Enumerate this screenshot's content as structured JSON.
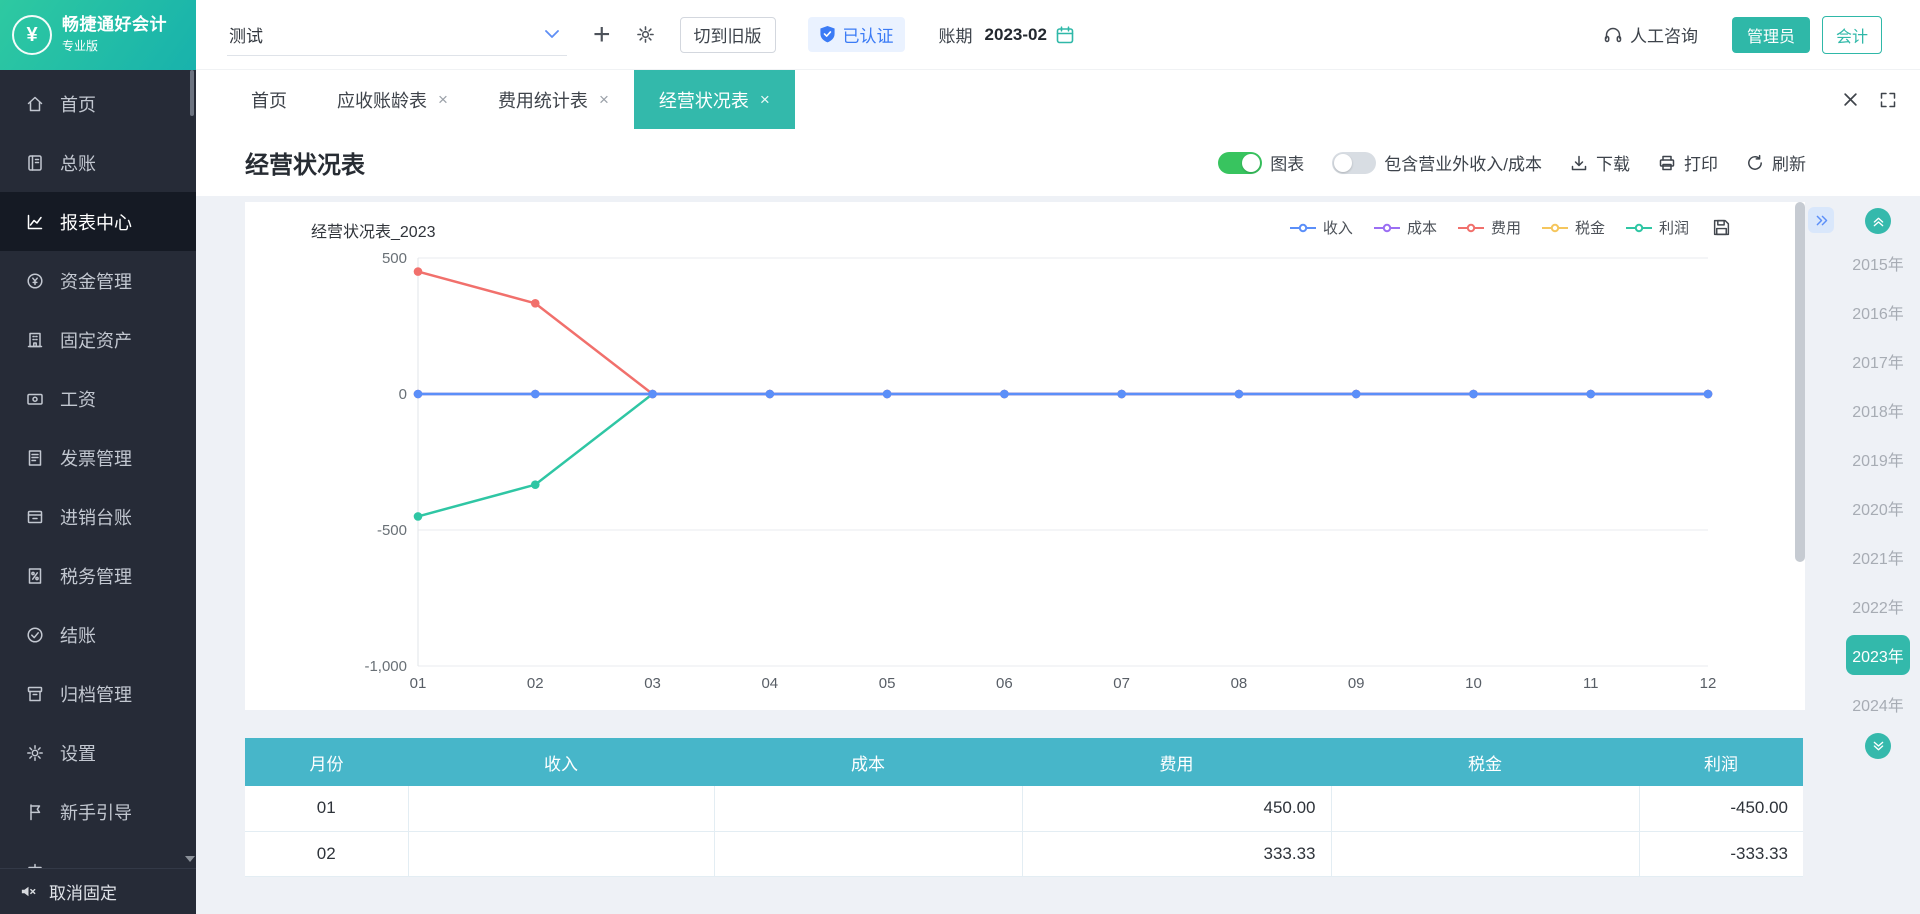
{
  "app": {
    "account_set": "测试",
    "switch_old": "切到旧版",
    "certified": "已认证",
    "period_label": "账期",
    "period_value": "2023-02",
    "support": "人工咨询",
    "role_admin": "管理员",
    "role_accountant": "会计",
    "logo_title": "畅捷通好会计",
    "logo_subtitle": "专业版"
  },
  "ui": {
    "close_glyph": "×",
    "plus_glyph": "+",
    "logo_glyph": "¥"
  },
  "sidebar": {
    "items": [
      {
        "id": "home",
        "label": "首页",
        "icon": "home-icon",
        "active": false
      },
      {
        "id": "ledger",
        "label": "总账",
        "icon": "ledger-icon",
        "active": false
      },
      {
        "id": "reports",
        "label": "报表中心",
        "icon": "report-icon",
        "active": true
      },
      {
        "id": "funds",
        "label": "资金管理",
        "icon": "funds-icon",
        "active": false
      },
      {
        "id": "assets",
        "label": "固定资产",
        "icon": "assets-icon",
        "active": false
      },
      {
        "id": "salary",
        "label": "工资",
        "icon": "salary-icon",
        "active": false
      },
      {
        "id": "invoice",
        "label": "发票管理",
        "icon": "invoice-icon",
        "active": false
      },
      {
        "id": "inventory",
        "label": "进销台账",
        "icon": "inventory-icon",
        "active": false
      },
      {
        "id": "tax",
        "label": "税务管理",
        "icon": "tax-icon",
        "active": false
      },
      {
        "id": "closing",
        "label": "结账",
        "icon": "closing-icon",
        "active": false
      },
      {
        "id": "archive",
        "label": "归档管理",
        "icon": "archive-icon",
        "active": false
      },
      {
        "id": "settings",
        "label": "设置",
        "icon": "gear-icon",
        "active": false
      },
      {
        "id": "guide",
        "label": "新手引导",
        "icon": "guide-icon",
        "active": false
      },
      {
        "id": "partial",
        "label": "",
        "icon": "scale-icon",
        "active": false
      }
    ],
    "unpin": "取消固定"
  },
  "tabs": [
    {
      "label": "首页",
      "closable": false,
      "active": false
    },
    {
      "label": "应收账龄表",
      "closable": true,
      "active": false
    },
    {
      "label": "费用统计表",
      "closable": true,
      "active": false
    },
    {
      "label": "经营状况表",
      "closable": true,
      "active": true
    }
  ],
  "page": {
    "title": "经营状况表",
    "toggle_chart_label": "图表",
    "toggle_include_label": "包含营业外收入/成本",
    "download": "下载",
    "print": "打印",
    "refresh": "刷新"
  },
  "chart_data": {
    "type": "line",
    "title": "经营状况表_2023",
    "categories": [
      "01",
      "02",
      "03",
      "04",
      "05",
      "06",
      "07",
      "08",
      "09",
      "10",
      "11",
      "12"
    ],
    "series": [
      {
        "name": "收入",
        "color": "#5b8ff9",
        "values": [
          0,
          0,
          0,
          0,
          0,
          0,
          0,
          0,
          0,
          0,
          0,
          0
        ]
      },
      {
        "name": "成本",
        "color": "#9b6ef3",
        "values": [
          0,
          0,
          0,
          0,
          0,
          0,
          0,
          0,
          0,
          0,
          0,
          0
        ]
      },
      {
        "name": "费用",
        "color": "#f1706c",
        "values": [
          450,
          333.33,
          0,
          0,
          0,
          0,
          0,
          0,
          0,
          0,
          0,
          0
        ]
      },
      {
        "name": "税金",
        "color": "#f5c65d",
        "values": [
          0,
          0,
          0,
          0,
          0,
          0,
          0,
          0,
          0,
          0,
          0,
          0
        ]
      },
      {
        "name": "利润",
        "color": "#2fc6a4",
        "values": [
          -450,
          -333.33,
          0,
          0,
          0,
          0,
          0,
          0,
          0,
          0,
          0,
          0
        ]
      }
    ],
    "xlabel": "",
    "ylabel": "",
    "ylim": [
      -1000,
      500
    ],
    "yticks": [
      500,
      0,
      -500,
      -1000
    ],
    "ytick_labels": [
      "500",
      "0",
      "-500",
      "-1,000"
    ],
    "grid": true,
    "legend_position": "top-right"
  },
  "table": {
    "headers": [
      "月份",
      "收入",
      "成本",
      "费用",
      "税金",
      "利润"
    ],
    "rows": [
      [
        "01",
        "",
        "",
        "450.00",
        "",
        "-450.00"
      ],
      [
        "02",
        "",
        "",
        "333.33",
        "",
        "-333.33"
      ]
    ]
  },
  "years": {
    "items": [
      "2015年",
      "2016年",
      "2017年",
      "2018年",
      "2019年",
      "2020年",
      "2021年",
      "2022年",
      "2023年",
      "2024年"
    ],
    "selected": "2023年"
  }
}
